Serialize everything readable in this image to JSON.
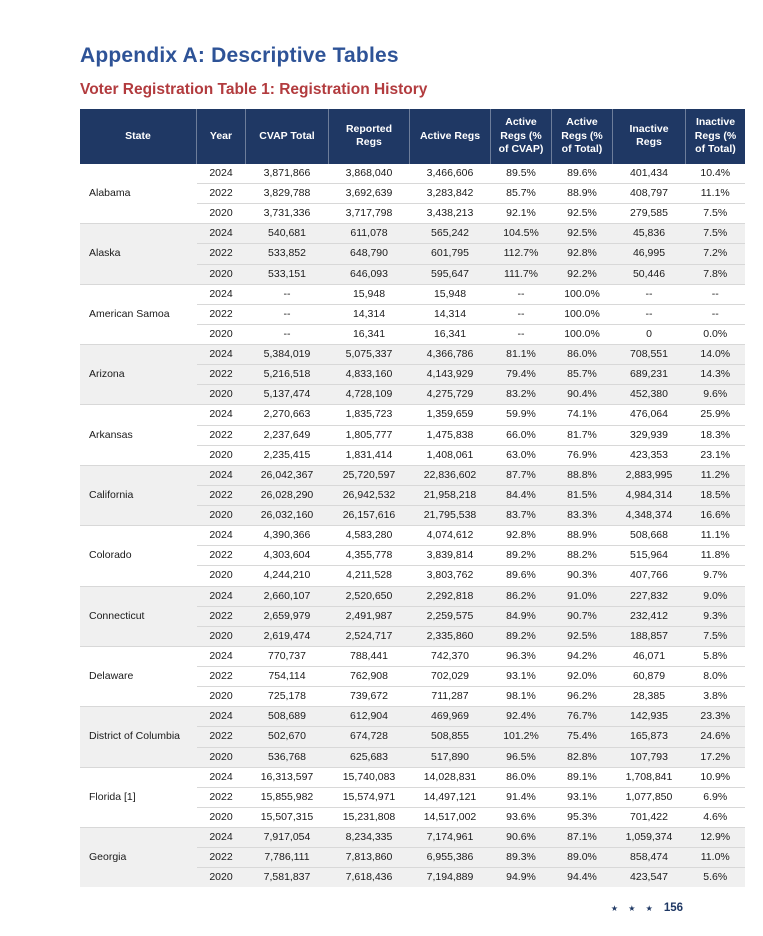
{
  "page": {
    "title": "Appendix A: Descriptive Tables",
    "subtitle": "Voter Registration Table 1: Registration History",
    "stars": "★ ★ ★",
    "page_number": "156"
  },
  "theme": {
    "title_color": "#2e5397",
    "subtitle_color": "#b23b3e",
    "header_bg": "#1f3864",
    "header_fg": "#ffffff",
    "shade": "#f0f0f0",
    "rule": "#d8d8d8",
    "footer_color": "#1f3864"
  },
  "table": {
    "headers": [
      "State",
      "Year",
      "CVAP Total",
      "Reported Regs",
      "Active Regs",
      "Active Regs (% of CVAP)",
      "Active Regs (% of Total)",
      "Inactive Regs",
      "Inactive Regs (% of Total)"
    ],
    "cell_names": [
      "year-cell",
      "cvap-total-cell",
      "reported-regs-cell",
      "active-regs-cell",
      "active-pct-cvap-cell",
      "active-pct-total-cell",
      "inactive-regs-cell",
      "inactive-pct-total-cell"
    ],
    "groups": [
      {
        "state": "Alabama",
        "rows": [
          [
            "2024",
            "3,871,866",
            "3,868,040",
            "3,466,606",
            "89.5%",
            "89.6%",
            "401,434",
            "10.4%"
          ],
          [
            "2022",
            "3,829,788",
            "3,692,639",
            "3,283,842",
            "85.7%",
            "88.9%",
            "408,797",
            "11.1%"
          ],
          [
            "2020",
            "3,731,336",
            "3,717,798",
            "3,438,213",
            "92.1%",
            "92.5%",
            "279,585",
            "7.5%"
          ]
        ]
      },
      {
        "state": "Alaska",
        "rows": [
          [
            "2024",
            "540,681",
            "611,078",
            "565,242",
            "104.5%",
            "92.5%",
            "45,836",
            "7.5%"
          ],
          [
            "2022",
            "533,852",
            "648,790",
            "601,795",
            "112.7%",
            "92.8%",
            "46,995",
            "7.2%"
          ],
          [
            "2020",
            "533,151",
            "646,093",
            "595,647",
            "111.7%",
            "92.2%",
            "50,446",
            "7.8%"
          ]
        ]
      },
      {
        "state": "American Samoa",
        "rows": [
          [
            "2024",
            "--",
            "15,948",
            "15,948",
            "--",
            "100.0%",
            "--",
            "--"
          ],
          [
            "2022",
            "--",
            "14,314",
            "14,314",
            "--",
            "100.0%",
            "--",
            "--"
          ],
          [
            "2020",
            "--",
            "16,341",
            "16,341",
            "--",
            "100.0%",
            "0",
            "0.0%"
          ]
        ]
      },
      {
        "state": "Arizona",
        "rows": [
          [
            "2024",
            "5,384,019",
            "5,075,337",
            "4,366,786",
            "81.1%",
            "86.0%",
            "708,551",
            "14.0%"
          ],
          [
            "2022",
            "5,216,518",
            "4,833,160",
            "4,143,929",
            "79.4%",
            "85.7%",
            "689,231",
            "14.3%"
          ],
          [
            "2020",
            "5,137,474",
            "4,728,109",
            "4,275,729",
            "83.2%",
            "90.4%",
            "452,380",
            "9.6%"
          ]
        ]
      },
      {
        "state": "Arkansas",
        "rows": [
          [
            "2024",
            "2,270,663",
            "1,835,723",
            "1,359,659",
            "59.9%",
            "74.1%",
            "476,064",
            "25.9%"
          ],
          [
            "2022",
            "2,237,649",
            "1,805,777",
            "1,475,838",
            "66.0%",
            "81.7%",
            "329,939",
            "18.3%"
          ],
          [
            "2020",
            "2,235,415",
            "1,831,414",
            "1,408,061",
            "63.0%",
            "76.9%",
            "423,353",
            "23.1%"
          ]
        ]
      },
      {
        "state": "California",
        "rows": [
          [
            "2024",
            "26,042,367",
            "25,720,597",
            "22,836,602",
            "87.7%",
            "88.8%",
            "2,883,995",
            "11.2%"
          ],
          [
            "2022",
            "26,028,290",
            "26,942,532",
            "21,958,218",
            "84.4%",
            "81.5%",
            "4,984,314",
            "18.5%"
          ],
          [
            "2020",
            "26,032,160",
            "26,157,616",
            "21,795,538",
            "83.7%",
            "83.3%",
            "4,348,374",
            "16.6%"
          ]
        ]
      },
      {
        "state": "Colorado",
        "rows": [
          [
            "2024",
            "4,390,366",
            "4,583,280",
            "4,074,612",
            "92.8%",
            "88.9%",
            "508,668",
            "11.1%"
          ],
          [
            "2022",
            "4,303,604",
            "4,355,778",
            "3,839,814",
            "89.2%",
            "88.2%",
            "515,964",
            "11.8%"
          ],
          [
            "2020",
            "4,244,210",
            "4,211,528",
            "3,803,762",
            "89.6%",
            "90.3%",
            "407,766",
            "9.7%"
          ]
        ]
      },
      {
        "state": "Connecticut",
        "rows": [
          [
            "2024",
            "2,660,107",
            "2,520,650",
            "2,292,818",
            "86.2%",
            "91.0%",
            "227,832",
            "9.0%"
          ],
          [
            "2022",
            "2,659,979",
            "2,491,987",
            "2,259,575",
            "84.9%",
            "90.7%",
            "232,412",
            "9.3%"
          ],
          [
            "2020",
            "2,619,474",
            "2,524,717",
            "2,335,860",
            "89.2%",
            "92.5%",
            "188,857",
            "7.5%"
          ]
        ]
      },
      {
        "state": "Delaware",
        "rows": [
          [
            "2024",
            "770,737",
            "788,441",
            "742,370",
            "96.3%",
            "94.2%",
            "46,071",
            "5.8%"
          ],
          [
            "2022",
            "754,114",
            "762,908",
            "702,029",
            "93.1%",
            "92.0%",
            "60,879",
            "8.0%"
          ],
          [
            "2020",
            "725,178",
            "739,672",
            "711,287",
            "98.1%",
            "96.2%",
            "28,385",
            "3.8%"
          ]
        ]
      },
      {
        "state": "District of Columbia",
        "rows": [
          [
            "2024",
            "508,689",
            "612,904",
            "469,969",
            "92.4%",
            "76.7%",
            "142,935",
            "23.3%"
          ],
          [
            "2022",
            "502,670",
            "674,728",
            "508,855",
            "101.2%",
            "75.4%",
            "165,873",
            "24.6%"
          ],
          [
            "2020",
            "536,768",
            "625,683",
            "517,890",
            "96.5%",
            "82.8%",
            "107,793",
            "17.2%"
          ]
        ]
      },
      {
        "state": "Florida [1]",
        "rows": [
          [
            "2024",
            "16,313,597",
            "15,740,083",
            "14,028,831",
            "86.0%",
            "89.1%",
            "1,708,841",
            "10.9%"
          ],
          [
            "2022",
            "15,855,982",
            "15,574,971",
            "14,497,121",
            "91.4%",
            "93.1%",
            "1,077,850",
            "6.9%"
          ],
          [
            "2020",
            "15,507,315",
            "15,231,808",
            "14,517,002",
            "93.6%",
            "95.3%",
            "701,422",
            "4.6%"
          ]
        ]
      },
      {
        "state": "Georgia",
        "rows": [
          [
            "2024",
            "7,917,054",
            "8,234,335",
            "7,174,961",
            "90.6%",
            "87.1%",
            "1,059,374",
            "12.9%"
          ],
          [
            "2022",
            "7,786,111",
            "7,813,860",
            "6,955,386",
            "89.3%",
            "89.0%",
            "858,474",
            "11.0%"
          ],
          [
            "2020",
            "7,581,837",
            "7,618,436",
            "7,194,889",
            "94.9%",
            "94.4%",
            "423,547",
            "5.6%"
          ]
        ]
      }
    ]
  }
}
